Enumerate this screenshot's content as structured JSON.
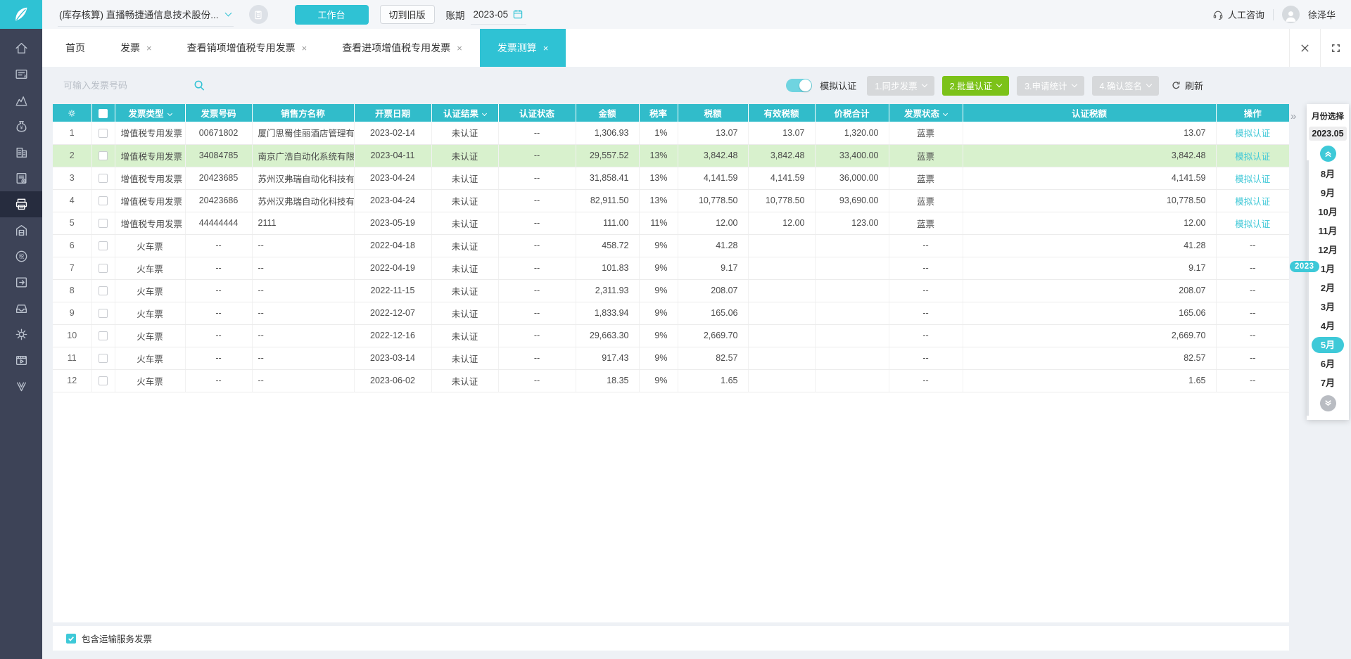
{
  "colors": {
    "accent_teal": "#2fc2d4",
    "table_header_teal": "#31bcca",
    "action_green": "#7cc219",
    "link_teal": "#3fc8d7",
    "sidebar_bg": "#3d4357",
    "row_highlight_green": "#d8f1cd"
  },
  "topbar": {
    "company": "(库存核算) 直播畅捷通信息技术股份...",
    "workbench_button": "工作台",
    "switch_old_button": "切到旧版",
    "period_label": "账期",
    "period_value": "2023-05",
    "support_label": "人工咨询",
    "user_name": "徐泽华"
  },
  "tabs": [
    {
      "label": "首页",
      "closable": false,
      "active": false
    },
    {
      "label": "发票",
      "closable": true,
      "active": false
    },
    {
      "label": "查看销项增值税专用发票",
      "closable": true,
      "active": false
    },
    {
      "label": "查看进项增值税专用发票",
      "closable": true,
      "active": false
    },
    {
      "label": "发票测算",
      "closable": true,
      "active": true
    }
  ],
  "glyphs": {
    "tab_close": "×",
    "panel_collapse": "»"
  },
  "toolbar": {
    "search_placeholder": "可输入发票号码",
    "toggle_label": "模拟认证",
    "toggle_on": true,
    "buttons": [
      {
        "label": "1.同步发票",
        "style": "gray",
        "caret": true
      },
      {
        "label": "2.批量认证",
        "style": "green",
        "caret": true
      },
      {
        "label": "3.申请统计",
        "style": "gray",
        "caret": true
      },
      {
        "label": "4.确认签名",
        "style": "gray",
        "caret": true
      }
    ],
    "refresh_label": "刷新"
  },
  "table": {
    "headers": [
      "发票类型",
      "发票号码",
      "销售方名称",
      "开票日期",
      "认证结果",
      "认证状态",
      "金额",
      "税率",
      "税额",
      "有效税额",
      "价税合计",
      "发票状态",
      "认证税额",
      "操作"
    ],
    "sorted_headers": [
      "发票类型",
      "认证结果",
      "发票状态"
    ],
    "rows": [
      {
        "num": "1",
        "highlight": false,
        "cells": [
          "增值税专用发票",
          "00671802",
          "厦门思蜀佳丽酒店管理有限公司",
          "2023-02-14",
          "未认证",
          "--",
          "1,306.93",
          "1%",
          "13.07",
          "13.07",
          "1,320.00",
          "蓝票",
          "13.07",
          "模拟认证"
        ]
      },
      {
        "num": "2",
        "highlight": true,
        "cells": [
          "增值税专用发票",
          "34084785",
          "南京广浩自动化系统有限责任公司",
          "2023-04-11",
          "未认证",
          "--",
          "29,557.52",
          "13%",
          "3,842.48",
          "3,842.48",
          "33,400.00",
          "蓝票",
          "3,842.48",
          "模拟认证"
        ]
      },
      {
        "num": "3",
        "highlight": false,
        "cells": [
          "增值税专用发票",
          "20423685",
          "苏州汉弗瑞自动化科技有限公司",
          "2023-04-24",
          "未认证",
          "--",
          "31,858.41",
          "13%",
          "4,141.59",
          "4,141.59",
          "36,000.00",
          "蓝票",
          "4,141.59",
          "模拟认证"
        ]
      },
      {
        "num": "4",
        "highlight": false,
        "cells": [
          "增值税专用发票",
          "20423686",
          "苏州汉弗瑞自动化科技有限公司",
          "2023-04-24",
          "未认证",
          "--",
          "82,911.50",
          "13%",
          "10,778.50",
          "10,778.50",
          "93,690.00",
          "蓝票",
          "10,778.50",
          "模拟认证"
        ]
      },
      {
        "num": "5",
        "highlight": false,
        "cells": [
          "增值税专用发票",
          "44444444",
          "2111",
          "2023-05-19",
          "未认证",
          "--",
          "111.00",
          "11%",
          "12.00",
          "12.00",
          "123.00",
          "蓝票",
          "12.00",
          "模拟认证"
        ]
      },
      {
        "num": "6",
        "highlight": false,
        "cells": [
          "火车票",
          "--",
          "--",
          "2022-04-18",
          "未认证",
          "--",
          "458.72",
          "9%",
          "41.28",
          "",
          "",
          "--",
          "41.28",
          "--"
        ]
      },
      {
        "num": "7",
        "highlight": false,
        "cells": [
          "火车票",
          "--",
          "--",
          "2022-04-19",
          "未认证",
          "--",
          "101.83",
          "9%",
          "9.17",
          "",
          "",
          "--",
          "9.17",
          "--"
        ]
      },
      {
        "num": "8",
        "highlight": false,
        "cells": [
          "火车票",
          "--",
          "--",
          "2022-11-15",
          "未认证",
          "--",
          "2,311.93",
          "9%",
          "208.07",
          "",
          "",
          "--",
          "208.07",
          "--"
        ]
      },
      {
        "num": "9",
        "highlight": false,
        "cells": [
          "火车票",
          "--",
          "--",
          "2022-12-07",
          "未认证",
          "--",
          "1,833.94",
          "9%",
          "165.06",
          "",
          "",
          "--",
          "165.06",
          "--"
        ]
      },
      {
        "num": "10",
        "highlight": false,
        "cells": [
          "火车票",
          "--",
          "--",
          "2022-12-16",
          "未认证",
          "--",
          "29,663.30",
          "9%",
          "2,669.70",
          "",
          "",
          "--",
          "2,669.70",
          "--"
        ]
      },
      {
        "num": "11",
        "highlight": false,
        "cells": [
          "火车票",
          "--",
          "--",
          "2023-03-14",
          "未认证",
          "--",
          "917.43",
          "9%",
          "82.57",
          "",
          "",
          "--",
          "82.57",
          "--"
        ]
      },
      {
        "num": "12",
        "highlight": false,
        "cells": [
          "火车票",
          "--",
          "--",
          "2023-06-02",
          "未认证",
          "--",
          "18.35",
          "9%",
          "1.65",
          "",
          "",
          "--",
          "1.65",
          "--"
        ]
      }
    ],
    "action_link_text": "模拟认证"
  },
  "month_panel": {
    "title": "月份选择",
    "current": "2023.05",
    "year_badge": "2023",
    "months": [
      "8月",
      "9月",
      "10月",
      "11月",
      "12月",
      "1月",
      "2月",
      "3月",
      "4月",
      "5月",
      "6月",
      "7月"
    ],
    "selected": "5月"
  },
  "footer": {
    "checkbox_label": "包含运输服务发票",
    "checked": true
  },
  "sidebar_icon_names": [
    "home-icon",
    "invoice-voucher-icon",
    "chart-icon",
    "money-bag-icon",
    "company-icon",
    "report-settings-icon",
    "invoice-print-icon",
    "warehouse-icon",
    "tax-coin-icon",
    "export-icon",
    "inbox-icon",
    "settings-gear-icon",
    "video-icon",
    "brand-v-icon"
  ],
  "sidebar_active": "invoice-print-icon"
}
